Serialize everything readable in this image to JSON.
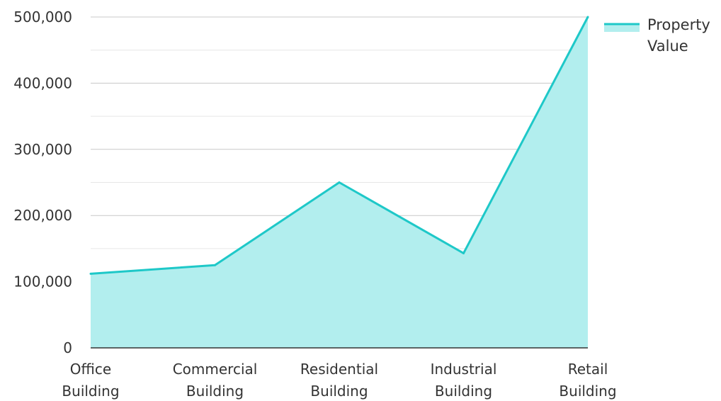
{
  "chart_data": {
    "type": "area",
    "categories": [
      [
        "Office",
        "Building"
      ],
      [
        "Commercial",
        "Building"
      ],
      [
        "Residential",
        "Building"
      ],
      [
        "Industrial",
        "Building"
      ],
      [
        "Retail",
        "Building"
      ]
    ],
    "series": [
      {
        "name": "Property Value",
        "name_lines": [
          "Property",
          "Value"
        ],
        "values": [
          112000,
          125000,
          250000,
          143000,
          500000
        ],
        "line_color": "#1ec8c8",
        "fill_color": "#b2eeee"
      }
    ],
    "ylim": [
      0,
      500000
    ],
    "y_ticks": [
      {
        "value": 0,
        "label": "0"
      },
      {
        "value": 100000,
        "label": "100,000"
      },
      {
        "value": 200000,
        "label": "200,000"
      },
      {
        "value": 300000,
        "label": "300,000"
      },
      {
        "value": 400000,
        "label": "400,000"
      },
      {
        "value": 500000,
        "label": "500,000"
      }
    ],
    "minor_grid_step": 50000,
    "grid": true,
    "legend_position": "top-right",
    "title": "",
    "xlabel": "",
    "ylabel": ""
  }
}
